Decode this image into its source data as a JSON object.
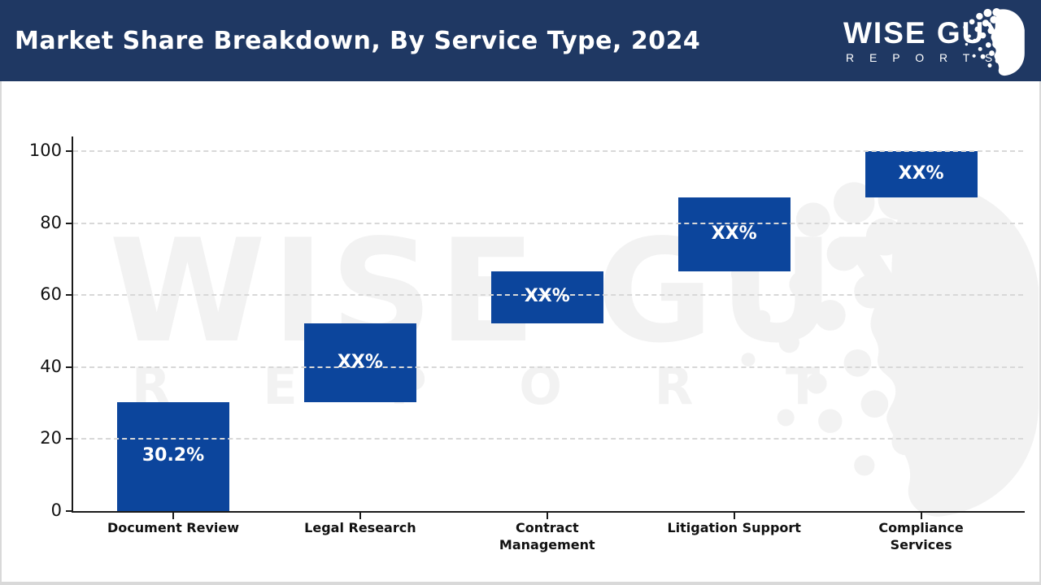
{
  "header": {
    "title": "Market Share Breakdown, By Service Type, 2024",
    "logo_line1": "WISE GUY",
    "logo_line2": "R E P O R T S"
  },
  "watermark": {
    "line1": "WISE GUY",
    "line2": "R E P O R T S"
  },
  "chart_data": {
    "type": "bar",
    "subtype": "waterfall",
    "title": "Market Share Breakdown, By Service Type, 2024",
    "categories": [
      "Document Review",
      "Legal Research",
      "Contract Management",
      "Litigation Support",
      "Compliance Services"
    ],
    "category_lines": [
      [
        "Document Review"
      ],
      [
        "Legal Research"
      ],
      [
        "Contract",
        "Management"
      ],
      [
        "Litigation Support"
      ],
      [
        "Compliance",
        "Services"
      ]
    ],
    "segments": [
      {
        "category": "Document Review",
        "label": "30.2%",
        "start": 0,
        "end": 30.2
      },
      {
        "category": "Legal Research",
        "label": "XX%",
        "start": 30.2,
        "end": 52.2
      },
      {
        "category": "Contract Management",
        "label": "XX%",
        "start": 52.2,
        "end": 66.6
      },
      {
        "category": "Litigation Support",
        "label": "XX%",
        "start": 66.6,
        "end": 87.1
      },
      {
        "category": "Compliance Services",
        "label": "XX%",
        "start": 87.1,
        "end": 100
      }
    ],
    "values": [
      30.2,
      22.0,
      14.4,
      20.5,
      12.9
    ],
    "y_ticks": [
      0,
      20,
      40,
      60,
      80,
      100
    ],
    "ylim": [
      0,
      105
    ],
    "xlabel": "",
    "ylabel": "",
    "grid": "horizontal dashed",
    "legend": "none",
    "bar_color": "#0c459c",
    "colors": {
      "header_bg": "#1f3863",
      "axis": "#1a1a1a",
      "gridline": "#d8d8d8",
      "watermark": "#f2f2f2",
      "bar_label_text": "#ffffff"
    }
  }
}
